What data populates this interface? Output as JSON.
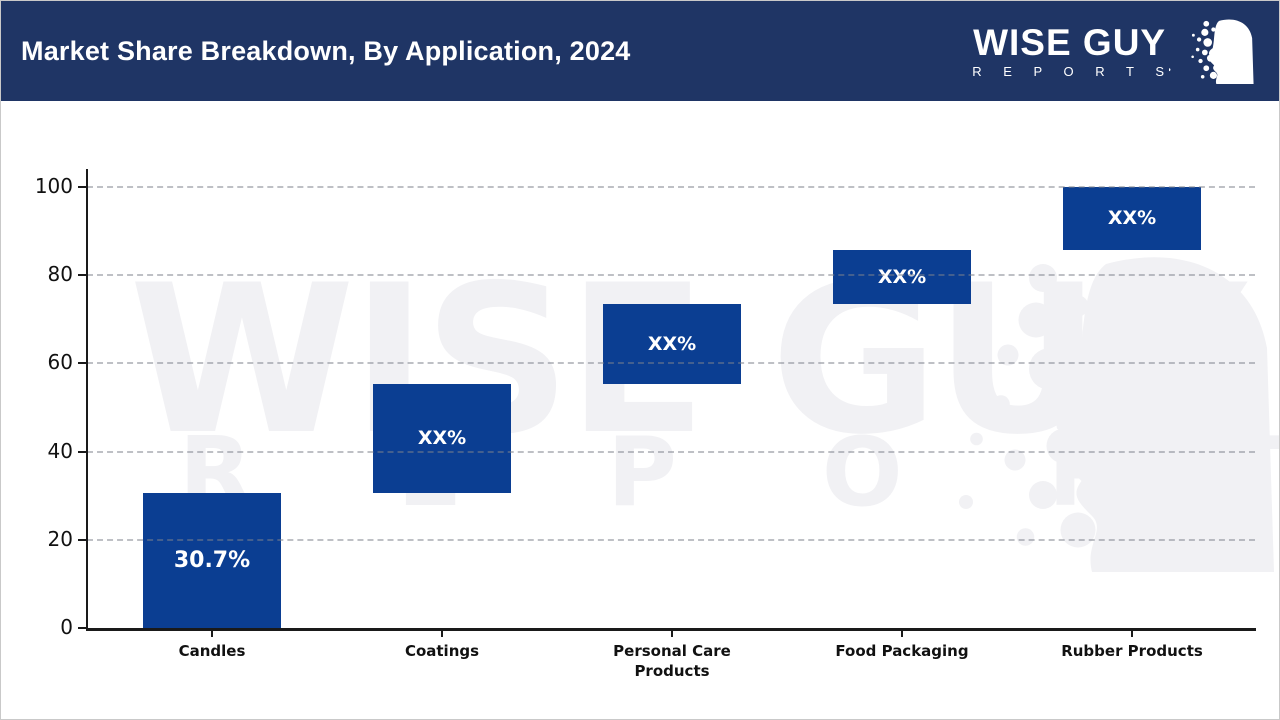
{
  "header": {
    "title": "Market Share Breakdown, By Application, 2024",
    "logo": {
      "line1": "WISE GUY",
      "line2": "R E P O R T S"
    }
  },
  "watermark": {
    "line1": "WISE GUY",
    "line2": "R E P O R T S"
  },
  "colors": {
    "header_bg": "#1f3565",
    "bar_fill": "#0b3e92",
    "bar_label_text": "#ffffff",
    "axis": "#1a1a1a",
    "gridline": "rgba(125,130,140,0.5)",
    "watermark": "#f1f1f4"
  },
  "chart_data": {
    "type": "bar",
    "subtype": "waterfall",
    "title": "Market Share Breakdown, By Application, 2024",
    "categories": [
      "Candles",
      "Coatings",
      "Personal Care Products",
      "Food Packaging",
      "Rubber Products"
    ],
    "segments": [
      {
        "category": "Candles",
        "start": 0,
        "end": 30.7,
        "label": "30.7%"
      },
      {
        "category": "Coatings",
        "start": 30.7,
        "end": 55.3,
        "label": "XX%"
      },
      {
        "category": "Personal Care Products",
        "start": 55.3,
        "end": 73.5,
        "label": "XX%"
      },
      {
        "category": "Food Packaging",
        "start": 73.5,
        "end": 85.8,
        "label": "XX%"
      },
      {
        "category": "Rubber Products",
        "start": 85.8,
        "end": 100,
        "label": "XX%"
      }
    ],
    "ylim": [
      0,
      100
    ],
    "yticks": [
      0,
      20,
      40,
      60,
      80,
      100
    ],
    "xlabel": "",
    "ylabel": "",
    "grid": "horizontal-dashed-over-bars",
    "legend": "none"
  }
}
